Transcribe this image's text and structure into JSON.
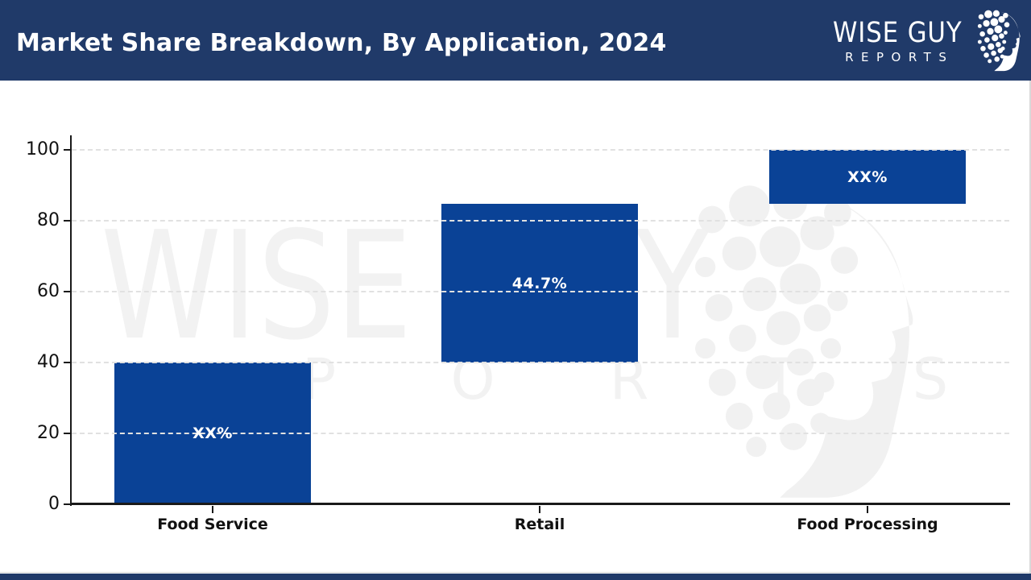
{
  "header": {
    "title": "Market Share Breakdown, By Application, 2024",
    "logo": {
      "line1": "WISE GUY",
      "line2": "REPORTS"
    }
  },
  "watermark": {
    "line1": "WISE GUY",
    "line2": "P O R T S"
  },
  "colors": {
    "header_bg": "#203a69",
    "bar": "#0a4296",
    "grid": "#e1e1e1",
    "axis": "#1a1a1a",
    "value_label": "#ffffff",
    "watermark": "#f2f2f2"
  },
  "chart_data": {
    "type": "bar",
    "subtype": "waterfall",
    "title": "Market Share Breakdown, By Application, 2024",
    "categories": [
      "Food Service",
      "Retail",
      "Food Processing"
    ],
    "segments": [
      {
        "category": "Food Service",
        "start": 0,
        "end": 40,
        "value": null,
        "label": "XX%"
      },
      {
        "category": "Retail",
        "start": 40,
        "end": 84.7,
        "value": 44.7,
        "label": "44.7%"
      },
      {
        "category": "Food Processing",
        "start": 84.7,
        "end": 100,
        "value": null,
        "label": "XX%"
      }
    ],
    "ylim": [
      0,
      100
    ],
    "yticks": [
      0,
      20,
      40,
      60,
      80,
      100
    ],
    "xlabel": "",
    "ylabel": "",
    "grid": "horizontal-dashed",
    "legend": "none",
    "bar_color": "#0a4296",
    "value_label_color": "#ffffff"
  }
}
